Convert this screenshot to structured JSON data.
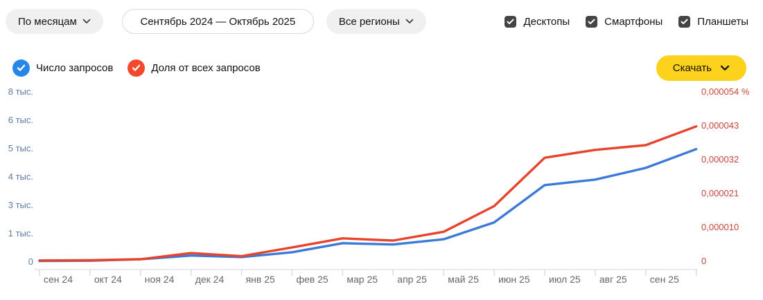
{
  "toolbar": {
    "grouping": {
      "label": "По месяцам"
    },
    "date_range": {
      "label": "Сентябрь 2024 — Октябрь 2025"
    },
    "region": {
      "label": "Все регионы"
    },
    "device_filters": [
      {
        "label": "Десктопы",
        "checked": true
      },
      {
        "label": "Смартфоны",
        "checked": true
      },
      {
        "label": "Планшеты",
        "checked": true
      }
    ]
  },
  "download": {
    "label": "Скачать"
  },
  "colors": {
    "legend_blue": "#2787e8",
    "legend_red": "#f5472c",
    "button_yellow": "#fcd21d",
    "left_axis_text": "#5e7aa6",
    "right_axis_text": "#c8463a"
  },
  "chart_data": {
    "type": "line",
    "x_labels": [
      "сен 24",
      "окт 24",
      "ноя 24",
      "дек 24",
      "янв 25",
      "фев 25",
      "мар 25",
      "апр 25",
      "май 25",
      "июн 25",
      "июл 25",
      "авг 25",
      "сен 25"
    ],
    "note": "14th data point (окт 25, partial month) is plotted but unlabeled on the x-axis",
    "series": [
      {
        "name": "Число запросов",
        "axis": "left",
        "color": "#3b7ad6",
        "values": [
          15,
          25,
          90,
          260,
          190,
          410,
          820,
          760,
          1000,
          1760,
          3450,
          3700,
          4230,
          5080
        ]
      },
      {
        "name": "Доля от всех запросов",
        "axis": "right",
        "color": "#e8432c",
        "values": [
          5e-08,
          1e-07,
          4.5e-07,
          2.4e-06,
          1.4e-06,
          4.2e-06,
          7.1e-06,
          6.4e-06,
          9.2e-06,
          1.74e-05,
          3.28e-05,
          3.53e-05,
          3.68e-05,
          4.28e-05
        ]
      }
    ],
    "left_axis": {
      "title": "Число запросов, тыс.",
      "ticks": [
        "0",
        "1 тыс.",
        "3 тыс.",
        "4 тыс.",
        "5 тыс.",
        "6 тыс.",
        "8 тыс."
      ],
      "max": 7700
    },
    "right_axis": {
      "title": "Доля от всех запросов, %",
      "ticks": [
        "0",
        "0,000010",
        "0,000021",
        "0,000032",
        "0,000043",
        "0,000054 %"
      ],
      "max": 5.4e-05
    },
    "grid": false,
    "legend_position": "top-left"
  }
}
